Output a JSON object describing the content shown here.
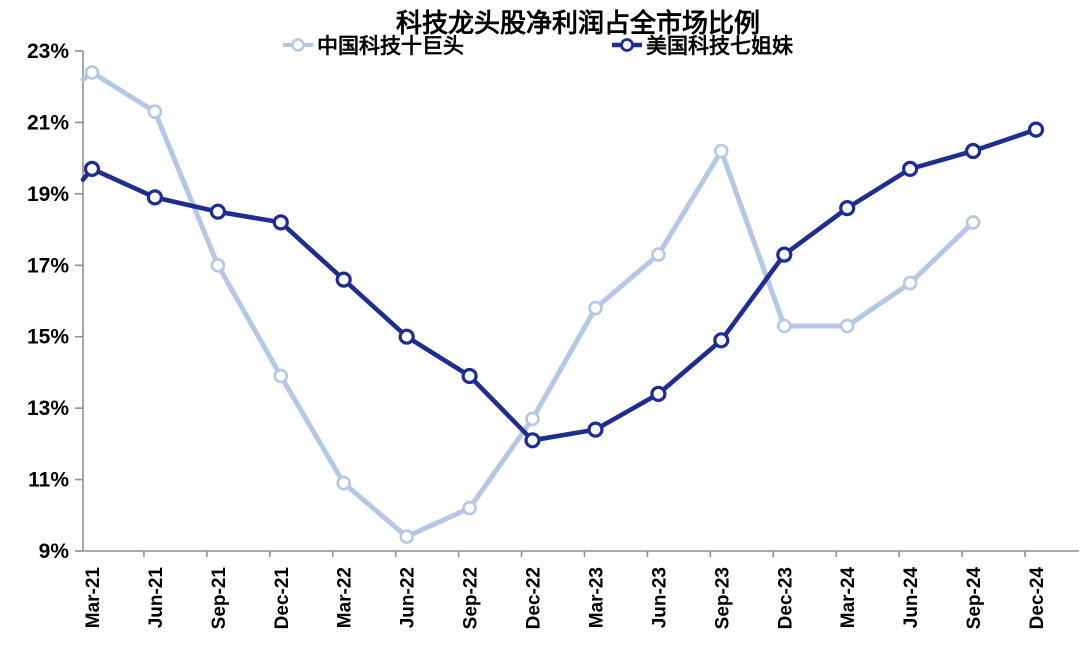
{
  "title": "科技龙头股净利润占全市场比例",
  "legend": {
    "items": [
      {
        "label": "中国科技十巨头",
        "color": "#b4c8e6"
      },
      {
        "label": "美国科技七姐妹",
        "color": "#1e2d92"
      }
    ]
  },
  "chart_data": {
    "type": "line",
    "title": "科技龙头股净利润占全市场比例",
    "xlabel": "",
    "ylabel": "",
    "categories": [
      "Mar-21",
      "Jun-21",
      "Sep-21",
      "Dec-21",
      "Mar-22",
      "Jun-22",
      "Sep-22",
      "Dec-22",
      "Mar-23",
      "Jun-23",
      "Sep-23",
      "Dec-23",
      "Mar-24",
      "Jun-24",
      "Sep-24",
      "Dec-24"
    ],
    "series": [
      {
        "name": "中国科技十巨头",
        "color": "#b4c8e6",
        "marker": "open-circle",
        "left_edge_clip_value": 22.2,
        "values": [
          22.4,
          21.3,
          17.0,
          13.9,
          10.9,
          9.4,
          10.2,
          12.7,
          15.8,
          17.3,
          20.2,
          15.3,
          15.3,
          16.5,
          18.2,
          null
        ]
      },
      {
        "name": "美国科技七姐妹",
        "color": "#1e2d92",
        "marker": "open-circle",
        "left_edge_clip_value": 19.4,
        "values": [
          19.7,
          18.9,
          18.5,
          18.2,
          16.6,
          15.0,
          13.9,
          12.1,
          12.4,
          13.4,
          14.9,
          17.3,
          18.6,
          19.7,
          20.2,
          20.8
        ]
      }
    ],
    "ylim": [
      9,
      23
    ],
    "ytick_step": 2,
    "ytick_labels": [
      "9%",
      "11%",
      "13%",
      "15%",
      "17%",
      "19%",
      "21%",
      "23%"
    ],
    "grid": false,
    "legend_position": "top-center",
    "axis_color": "#8f8f8f",
    "label_color": "#000000"
  }
}
